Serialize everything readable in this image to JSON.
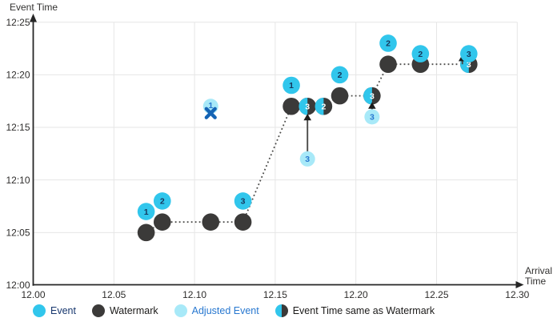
{
  "page": {
    "background": "#ffffff"
  },
  "colors": {
    "event": "#31C6EC",
    "watermark": "#3B3A39",
    "adjusted_event": "#A8E9F8",
    "event_number": "#16365C",
    "adjusted_number": "#2878D0",
    "number_on_dark": "#FFFFFF",
    "dropped_x": "#1464B5",
    "grid": "#E6E6E6",
    "axis": "#262626",
    "tick_text": "#2E2D2C",
    "dotted_line": "#4A4A48",
    "arrow_head": "#1C1C1C",
    "arrow_shaft": "#4A4A48"
  },
  "chart_data": {
    "type": "scatter",
    "title": "",
    "xlabel": "Arrival Time",
    "ylabel": "Event Time",
    "x_axis_label_lines": [
      "Arrival",
      "Time"
    ],
    "y_axis_label": "Event Time",
    "grid": true,
    "legend_position": "bottom",
    "x_range": [
      12.0,
      12.3
    ],
    "y_range": [
      "12:00",
      "12:25"
    ],
    "x_ticks": [
      {
        "label": "12.00",
        "value": 12.0
      },
      {
        "label": "12.05",
        "value": 12.05
      },
      {
        "label": "12.10",
        "value": 12.1
      },
      {
        "label": "12.15",
        "value": 12.15
      },
      {
        "label": "12.20",
        "value": 12.2
      },
      {
        "label": "12.25",
        "value": 12.25
      },
      {
        "label": "12.30",
        "value": 12.3
      }
    ],
    "y_ticks": [
      {
        "label": "12:00",
        "minutes": 0
      },
      {
        "label": "12:05",
        "minutes": 5
      },
      {
        "label": "12:10",
        "minutes": 10
      },
      {
        "label": "12:15",
        "minutes": 15
      },
      {
        "label": "12:20",
        "minutes": 20
      },
      {
        "label": "12:25",
        "minutes": 25
      }
    ],
    "series": {
      "events": [
        {
          "n": "1",
          "arrival": 12.07,
          "event_time": "12:07",
          "minutes": 7
        },
        {
          "n": "2",
          "arrival": 12.08,
          "event_time": "12:08",
          "minutes": 8
        },
        {
          "n": "3",
          "arrival": 12.13,
          "event_time": "12:08",
          "minutes": 8
        },
        {
          "n": "1",
          "arrival": 12.16,
          "event_time": "12:19",
          "minutes": 19
        },
        {
          "n": "2",
          "arrival": 12.19,
          "event_time": "12:20",
          "minutes": 20
        },
        {
          "n": "2",
          "arrival": 12.22,
          "event_time": "12:23",
          "minutes": 23
        },
        {
          "n": "2",
          "arrival": 12.24,
          "event_time": "12:22",
          "minutes": 22
        },
        {
          "n": "3",
          "arrival": 12.27,
          "event_time": "12:22",
          "minutes": 22
        }
      ],
      "watermarks": [
        {
          "arrival": 12.07,
          "time": "12:05",
          "minutes": 5
        },
        {
          "arrival": 12.08,
          "time": "12:06",
          "minutes": 6
        },
        {
          "arrival": 12.11,
          "time": "12:06",
          "minutes": 6
        },
        {
          "arrival": 12.13,
          "time": "12:06",
          "minutes": 6
        },
        {
          "arrival": 12.16,
          "time": "12:17",
          "minutes": 17
        },
        {
          "arrival": 12.19,
          "time": "12:18",
          "minutes": 18
        },
        {
          "arrival": 12.22,
          "time": "12:21",
          "minutes": 21
        },
        {
          "arrival": 12.24,
          "time": "12:21",
          "minutes": 21
        }
      ],
      "events_same_as_watermark": [
        {
          "n": "3",
          "arrival": 12.17,
          "time": "12:17",
          "minutes": 17
        },
        {
          "n": "2",
          "arrival": 12.18,
          "time": "12:17",
          "minutes": 17
        },
        {
          "n": "3",
          "arrival": 12.21,
          "time": "12:18",
          "minutes": 18
        },
        {
          "n": "3",
          "arrival": 12.27,
          "time": "12:21",
          "minutes": 21
        }
      ],
      "adjusted_events": [
        {
          "n": "1",
          "arrival": 12.11,
          "time": "12:17",
          "minutes": 17,
          "dropped": true
        },
        {
          "n": "3",
          "arrival": 12.17,
          "time": "12:12",
          "minutes": 12,
          "dropped": false
        },
        {
          "n": "3",
          "arrival": 12.21,
          "time": "12:16",
          "minutes": 16,
          "dropped": false
        }
      ]
    },
    "watermark_line": [
      [
        12.07,
        5
      ],
      [
        12.08,
        6
      ],
      [
        12.11,
        6
      ],
      [
        12.13,
        6
      ],
      [
        12.16,
        17
      ],
      [
        12.17,
        17
      ],
      [
        12.18,
        17
      ],
      [
        12.19,
        18
      ],
      [
        12.21,
        18
      ],
      [
        12.22,
        21
      ],
      [
        12.24,
        21
      ],
      [
        12.264,
        21
      ]
    ],
    "adjustment_arrows": [
      {
        "x": 12.17,
        "from_minutes": 12.72,
        "to_minutes": 16.3
      },
      {
        "x": 12.21,
        "from_minutes": 16.72,
        "to_minutes": 17.4
      },
      {
        "x": 12.266,
        "from_minutes": 21.0,
        "to_minutes": 21.93
      }
    ]
  },
  "legend": {
    "items": [
      {
        "label": "Event",
        "swatch": "event",
        "text_color": "#17376E"
      },
      {
        "label": "Watermark",
        "swatch": "watermark",
        "text_color": "#1B1A19"
      },
      {
        "label": "Adjusted Event",
        "swatch": "adjusted_event",
        "text_color": "#2878D0"
      },
      {
        "label": "Event Time same as Watermark",
        "swatch": "half",
        "text_color": "#1B1A19"
      }
    ]
  }
}
